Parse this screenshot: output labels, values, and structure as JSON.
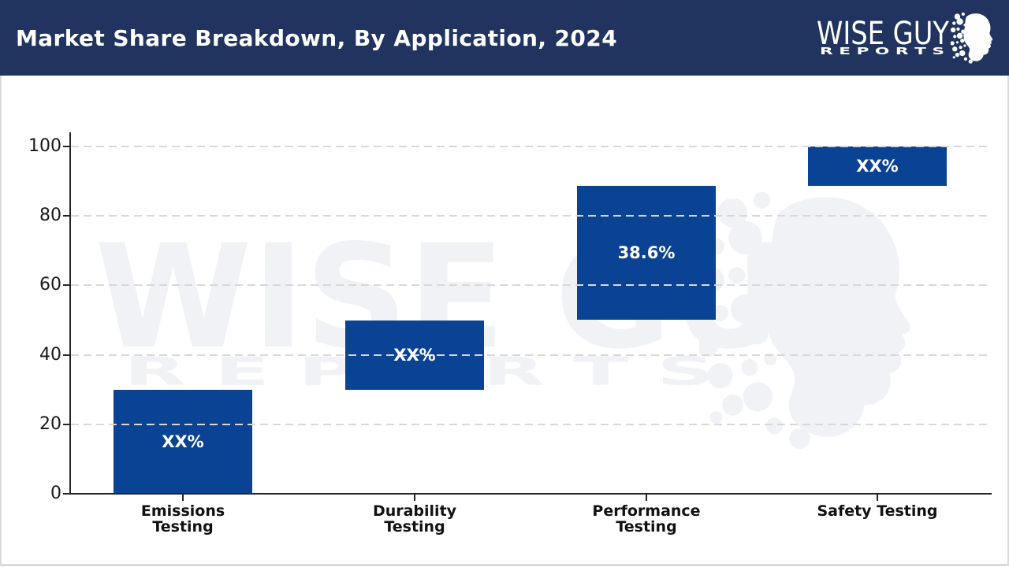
{
  "header": {
    "title": "Market Share Breakdown, By Application, 2024",
    "logo": {
      "brand": "WISE GUY",
      "subtitle": "R E P O R T S"
    }
  },
  "watermark": {
    "brand": "WISE GUY",
    "subtitle": "R E P O R T S"
  },
  "colors": {
    "header_bg": "#21345f",
    "title_text": "#ffffff",
    "logo_text": "#ffffff",
    "bar": "#0a4294",
    "grid": "#d8d8d8",
    "axis": "#262626",
    "tick_text": "#1a1a1a",
    "watermark": "#f1f2f5",
    "border": "#d9dadb"
  },
  "chart_data": {
    "type": "bar",
    "subtype": "floating-waterfall",
    "title": "Market Share Breakdown, By Application, 2024",
    "categories": [
      "Emissions Testing",
      "Durability Testing",
      "Performance Testing",
      "Safety Testing"
    ],
    "categories_wrapped": [
      [
        "Emissions Testing"
      ],
      [
        "Durability Testing"
      ],
      [
        "Performance",
        "Testing"
      ],
      [
        "Safety Testing"
      ]
    ],
    "segments": [
      {
        "category": "Emissions Testing",
        "start": 0,
        "end": 30,
        "label": "XX%"
      },
      {
        "category": "Durability Testing",
        "start": 30,
        "end": 50,
        "label": "XX%"
      },
      {
        "category": "Performance Testing",
        "start": 50,
        "end": 88.6,
        "label": "38.6%"
      },
      {
        "category": "Safety Testing",
        "start": 88.6,
        "end": 100,
        "label": "XX%"
      }
    ],
    "ylim": [
      0,
      100
    ],
    "yticks": [
      0,
      20,
      40,
      60,
      80,
      100
    ],
    "grid": "horizontal-dashed",
    "legend": "none"
  }
}
